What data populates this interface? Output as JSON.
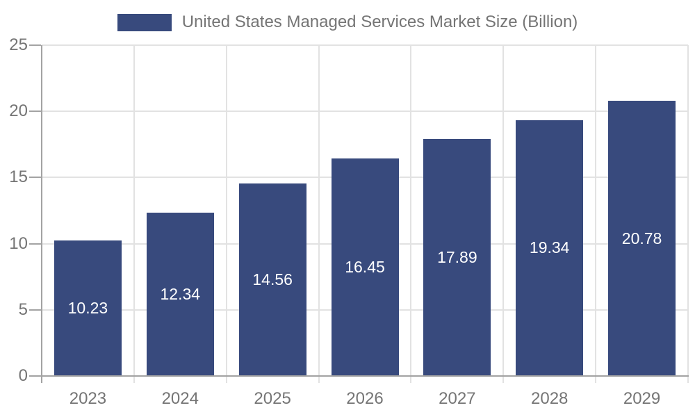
{
  "chart_data": {
    "type": "bar",
    "title": "United States Managed Services Market Size (Billion)",
    "series": [
      {
        "name": "United States Managed Services Market Size (Billion)",
        "values": [
          10.23,
          12.34,
          14.56,
          16.45,
          17.89,
          19.34,
          20.78
        ]
      }
    ],
    "categories": [
      "2023",
      "2024",
      "2025",
      "2026",
      "2027",
      "2028",
      "2029"
    ],
    "xlabel": "",
    "ylabel": "",
    "ylim": [
      0,
      25
    ],
    "yticks": [
      0,
      5,
      10,
      15,
      20,
      25
    ],
    "grid": true,
    "legend_position": "top-center",
    "value_label_position": "inside-center",
    "value_label_decimals": 2
  },
  "colors": {
    "bar": "#384A7D",
    "bar_label": "#FFFFFF",
    "axis": "#A3A3A3",
    "grid": "#E2E2E2",
    "tick_text": "#757575"
  }
}
